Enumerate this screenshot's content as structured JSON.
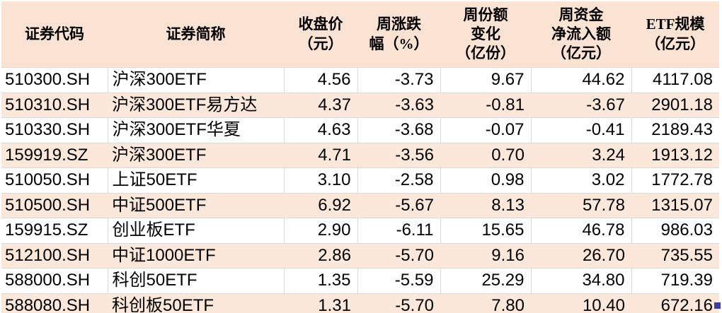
{
  "chart_data": {
    "type": "table",
    "columns": [
      {
        "id": "code",
        "label": "证券代码",
        "display": "证券代码"
      },
      {
        "id": "name",
        "label": "证券简称",
        "display": "证券简称"
      },
      {
        "id": "close",
        "label": "收盘价（元）",
        "display": "收盘价\n（元）"
      },
      {
        "id": "week_change",
        "label": "周涨跌幅（%）",
        "display": "周涨跌\n幅（%）"
      },
      {
        "id": "share_change",
        "label": "周份额变化（亿份）",
        "display": "周份额\n变化\n（亿份）"
      },
      {
        "id": "net_inflow",
        "label": "周资金净流入额（亿元）",
        "display": "周资金\n净流入额\n（亿元）"
      },
      {
        "id": "scale",
        "label": "ETF规模（亿元）",
        "display": "ETF规模\n（亿元）"
      }
    ],
    "rows": [
      {
        "code": "510300.SH",
        "name": "沪深300ETF",
        "close": "4.56",
        "week_change": "-3.73",
        "share_change": "9.67",
        "net_inflow": "44.62",
        "scale": "4117.08"
      },
      {
        "code": "510310.SH",
        "name": "沪深300ETF易方达",
        "close": "4.37",
        "week_change": "-3.63",
        "share_change": "-0.81",
        "net_inflow": "-3.67",
        "scale": "2901.18"
      },
      {
        "code": "510330.SH",
        "name": "沪深300ETF华夏",
        "close": "4.63",
        "week_change": "-3.68",
        "share_change": "-0.07",
        "net_inflow": "-0.41",
        "scale": "2189.43"
      },
      {
        "code": "159919.SZ",
        "name": "沪深300ETF",
        "close": "4.71",
        "week_change": "-3.56",
        "share_change": "0.70",
        "net_inflow": "3.24",
        "scale": "1913.12"
      },
      {
        "code": "510050.SH",
        "name": "上证50ETF",
        "close": "3.10",
        "week_change": "-2.58",
        "share_change": "0.98",
        "net_inflow": "3.02",
        "scale": "1772.78"
      },
      {
        "code": "510500.SH",
        "name": "中证500ETF",
        "close": "6.92",
        "week_change": "-5.67",
        "share_change": "8.13",
        "net_inflow": "57.78",
        "scale": "1315.07"
      },
      {
        "code": "159915.SZ",
        "name": "创业板ETF",
        "close": "2.90",
        "week_change": "-6.11",
        "share_change": "15.65",
        "net_inflow": "46.78",
        "scale": "986.03"
      },
      {
        "code": "512100.SH",
        "name": "中证1000ETF",
        "close": "2.86",
        "week_change": "-5.70",
        "share_change": "9.16",
        "net_inflow": "26.70",
        "scale": "735.55"
      },
      {
        "code": "588000.SH",
        "name": "科创50ETF",
        "close": "1.35",
        "week_change": "-5.59",
        "share_change": "25.29",
        "net_inflow": "34.80",
        "scale": "719.39"
      },
      {
        "code": "588080.SH",
        "name": "科创板50ETF",
        "close": "1.31",
        "week_change": "-5.70",
        "share_change": "7.80",
        "net_inflow": "10.40",
        "scale": "672.16"
      }
    ]
  },
  "colors": {
    "header_bg": "#fbe3d3",
    "row_bg": "#ffffff",
    "row_alt_bg": "#fce8da",
    "grid_line": "#d9d9d9",
    "text": "#000000",
    "fill_handle": "#3a3f99"
  }
}
